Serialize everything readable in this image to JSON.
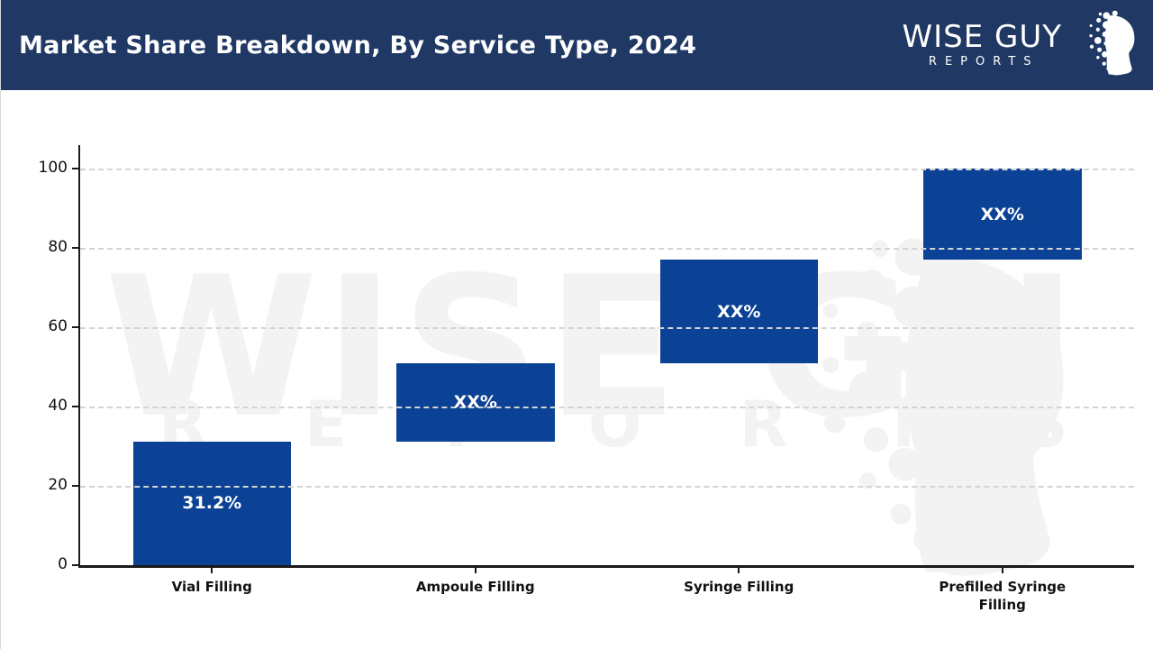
{
  "header": {
    "title": "Market Share Breakdown, By Service Type, 2024",
    "bg_color": "#203864",
    "logo": {
      "line1": "WISE GUY",
      "line2": "REPORTS",
      "icon": "dotted-face-profile"
    }
  },
  "watermark": {
    "line1": "WISE GU",
    "line2": "REPORTS",
    "icon": "dotted-face-profile"
  },
  "chart_data": {
    "type": "bar",
    "subtype": "waterfall",
    "title": "Market Share Breakdown, By Service Type, 2024",
    "categories": [
      "Vial Filling",
      "Ampoule Filling",
      "Syringe Filling",
      "Prefilled Syringe Filling"
    ],
    "segments": [
      {
        "category": "Vial Filling",
        "start": 0,
        "end": 31.2,
        "label": "31.2%"
      },
      {
        "category": "Ampoule Filling",
        "start": 31.2,
        "end": 51,
        "label": "XX%"
      },
      {
        "category": "Syringe Filling",
        "start": 51,
        "end": 77,
        "label": "XX%"
      },
      {
        "category": "Prefilled Syringe Filling",
        "start": 77,
        "end": 100,
        "label": "XX%"
      }
    ],
    "yticks": [
      0,
      20,
      40,
      60,
      80,
      100
    ],
    "ylim": [
      0,
      105.5
    ],
    "xlabel": "",
    "ylabel": "",
    "legend": "none",
    "grid": "horizontal-dashed-over-bars",
    "colors": {
      "bar": "#0b4295",
      "bar_label_text": "#ffffff",
      "grid": "#d4d4d4",
      "axis": "#1a1a1a",
      "tick_text": "#111111",
      "watermark": "#f3f3f3"
    }
  }
}
